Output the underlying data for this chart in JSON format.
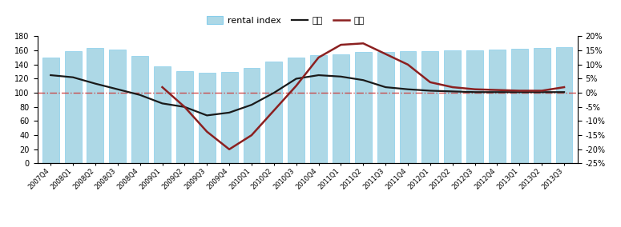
{
  "quarters": [
    "2007Q4",
    "2008Q1",
    "2008Q2",
    "2008Q3",
    "2008Q4",
    "2009Q1",
    "2009Q2",
    "2009Q3",
    "2009Q4",
    "2010Q1",
    "2010Q2",
    "2010Q3",
    "2010Q4",
    "2011Q1",
    "2011Q2",
    "2011Q3",
    "2011Q4",
    "2012Q1",
    "2012Q2",
    "2012Q3",
    "2012Q4",
    "2013Q1",
    "2013Q2",
    "2013Q3"
  ],
  "rental_index": [
    150,
    159,
    163,
    161,
    152,
    138,
    131,
    129,
    130,
    135,
    144,
    150,
    153,
    155,
    158,
    158,
    159,
    159,
    160,
    160,
    161,
    162,
    163,
    165
  ],
  "huanbi": [
    125,
    122,
    113,
    105,
    97,
    85,
    80,
    68,
    72,
    83,
    100,
    120,
    125,
    123,
    118,
    108,
    105,
    103,
    102,
    101,
    101,
    101,
    101,
    101
  ],
  "tongbi": [
    null,
    null,
    null,
    null,
    null,
    108,
    80,
    45,
    20,
    40,
    75,
    110,
    150,
    168,
    170,
    155,
    140,
    115,
    108,
    105,
    104,
    103,
    103,
    108
  ],
  "bar_color": "#add8e6",
  "bar_edge_color": "#87ceeb",
  "huanbi_color": "#1a1a1a",
  "tongbi_color": "#8b2020",
  "ref_line_color": "#cc3333",
  "ylim_left": [
    0,
    180
  ],
  "ylim_right": [
    -25,
    20
  ],
  "yticks_left": [
    0,
    20,
    40,
    60,
    80,
    100,
    120,
    140,
    160,
    180
  ],
  "yticks_right_vals": [
    -25,
    -20,
    -15,
    -10,
    -5,
    0,
    5,
    10,
    15,
    20
  ],
  "yticks_right_labels": [
    "-25%",
    "-20%",
    "-15%",
    "-10%",
    "-5%",
    "0%",
    "5%",
    "10%",
    "15%",
    "20%"
  ],
  "legend_labels": [
    "rental index",
    "环比",
    "同比"
  ],
  "figsize": [
    7.75,
    2.84
  ],
  "dpi": 100
}
